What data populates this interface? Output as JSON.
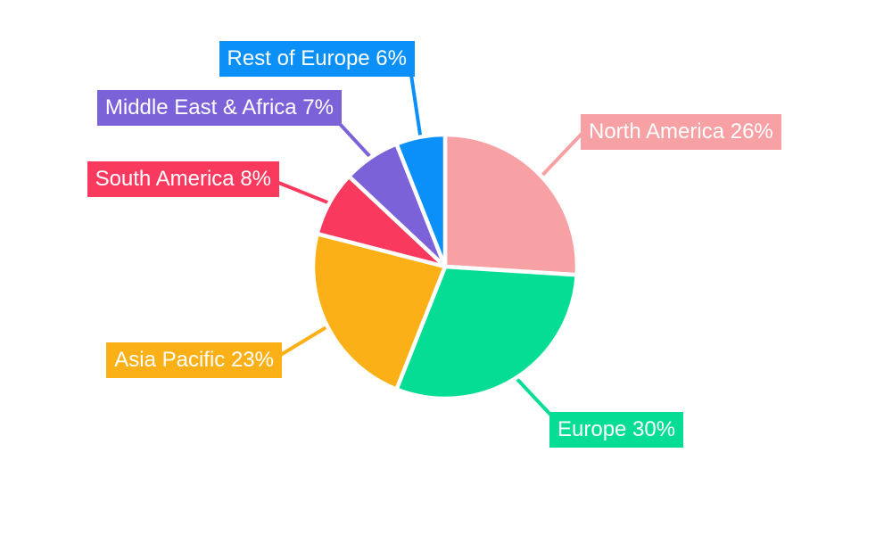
{
  "chart_data": {
    "type": "pie",
    "title": "",
    "unit": "%",
    "direction": "clockwise",
    "start_angle_deg": 0,
    "legend_position": "outside-callouts",
    "background": "#FFFFFF",
    "label_text_color": "#FFFFFF",
    "slices": [
      {
        "label": "North America",
        "value": 26,
        "color": "#F7A1A5",
        "display": "North America 26%"
      },
      {
        "label": "Europe",
        "value": 30,
        "color": "#06DD94",
        "display": "Europe 30%"
      },
      {
        "label": "Asia Pacific",
        "value": 23,
        "color": "#FCB017",
        "display": "Asia Pacific 23%"
      },
      {
        "label": "South America",
        "value": 8,
        "color": "#F93A5E",
        "display": "South America 8%"
      },
      {
        "label": "Middle East & Africa",
        "value": 7,
        "color": "#7C62D9",
        "display": "Middle East & Africa 7%"
      },
      {
        "label": "Rest of Europe",
        "value": 6,
        "color": "#0B90FA",
        "display": "Rest of Europe 6%"
      }
    ]
  }
}
